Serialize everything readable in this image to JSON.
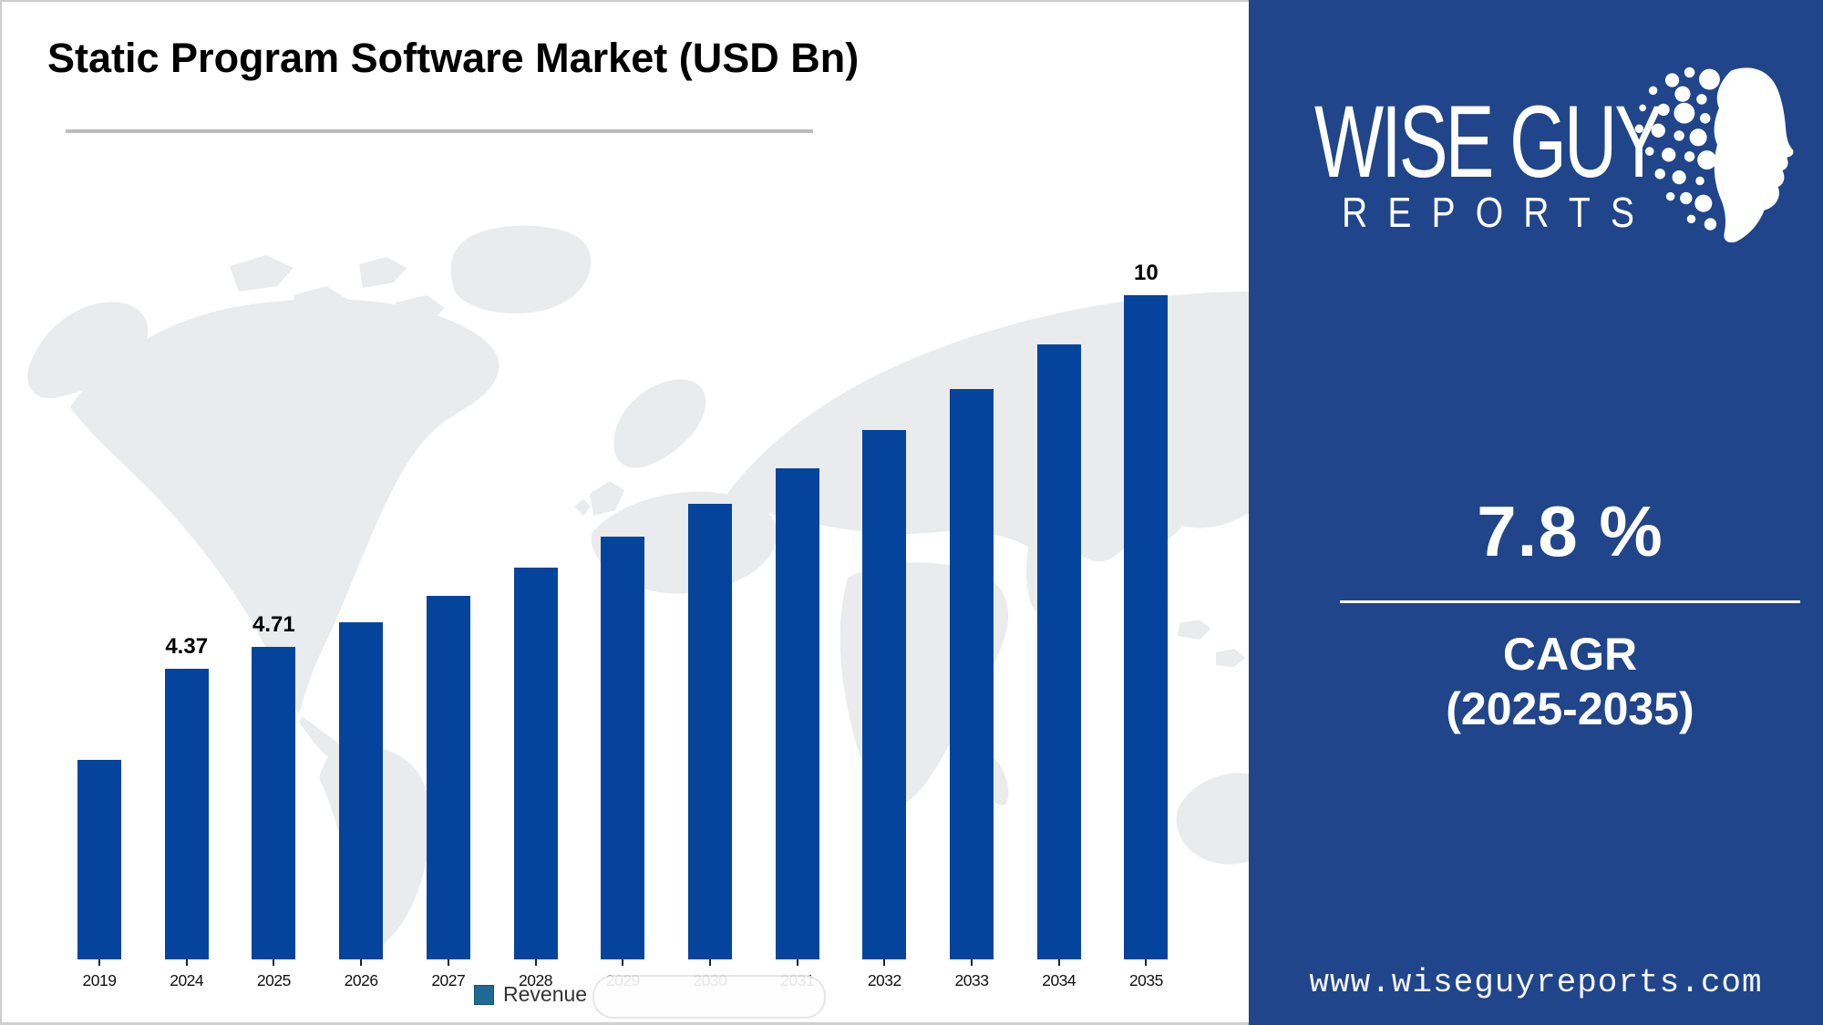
{
  "title": "Static Program Software Market (USD Bn)",
  "chart_data": {
    "type": "bar",
    "title": "Static Program Software Market (USD Bn)",
    "xlabel": "",
    "ylabel": "",
    "ylim": [
      0,
      10
    ],
    "grid": false,
    "legend_position": "bottom",
    "legend_label": "Revenue",
    "categories": [
      "2019",
      "2024",
      "2025",
      "2026",
      "2027",
      "2028",
      "2029",
      "2030",
      "2031",
      "2032",
      "2033",
      "2034",
      "2035"
    ],
    "values": [
      3.0,
      4.37,
      4.71,
      5.08,
      5.47,
      5.9,
      6.36,
      6.86,
      7.39,
      7.97,
      8.59,
      9.26,
      10
    ],
    "value_labels": {
      "2024": "4.37",
      "2025": "4.71",
      "2035": "10"
    },
    "bar_color": "#04449c",
    "legend_swatch_color": "#1e6a94",
    "background": "light-gray world map watermark"
  },
  "colors": {
    "bar": "#04449c",
    "sidebar_background": "#21458a",
    "map_watermark": "#e9ebed",
    "legend_swatch": "#1e6a94",
    "title_underline": "#bcbcbc"
  },
  "sidebar": {
    "logo_line1": "WISE GUY",
    "logo_line2": "REPORTS",
    "logo_icon": "dotted-face-profile",
    "cagr_value": "7.8 %",
    "cagr_label": "CAGR",
    "cagr_range": "(2025-2035)",
    "website": "www.wiseguyreports.com"
  }
}
